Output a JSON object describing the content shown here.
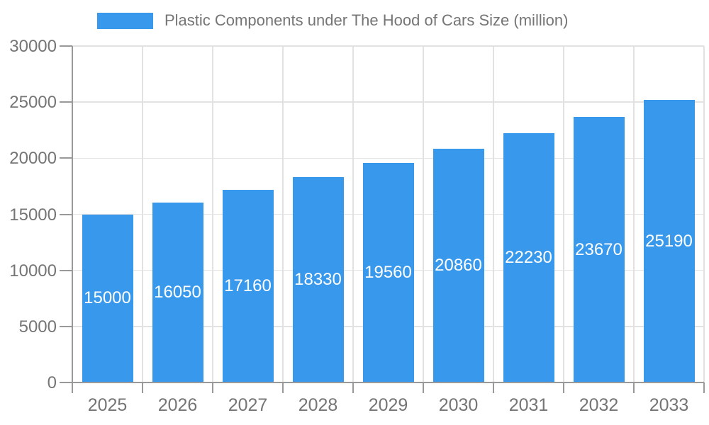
{
  "legend": {
    "label": "Plastic Components under The Hood of Cars Size (million)"
  },
  "colors": {
    "bar": "#3898EC",
    "grid": "#E2E2E2",
    "axis": "#999999",
    "tick": "#999999",
    "tick_label": "#757575",
    "value_label": "#FFFFFF",
    "background": "#FFFFFF"
  },
  "chart_data": {
    "type": "bar",
    "title": "Plastic Components under The Hood of Cars Size (million)",
    "categories": [
      "2025",
      "2026",
      "2027",
      "2028",
      "2029",
      "2030",
      "2031",
      "2032",
      "2033"
    ],
    "values": [
      15000,
      16050,
      17160,
      18330,
      19560,
      20860,
      22230,
      23670,
      25190
    ],
    "xlabel": "",
    "ylabel": "",
    "ylim": [
      0,
      30000
    ],
    "ytick_step": 5000,
    "ytick_labels": [
      "0",
      "5000",
      "10000",
      "15000",
      "20000",
      "25000",
      "30000"
    ],
    "grid": true,
    "legend_position": "top",
    "value_label_position": "inside-center"
  }
}
